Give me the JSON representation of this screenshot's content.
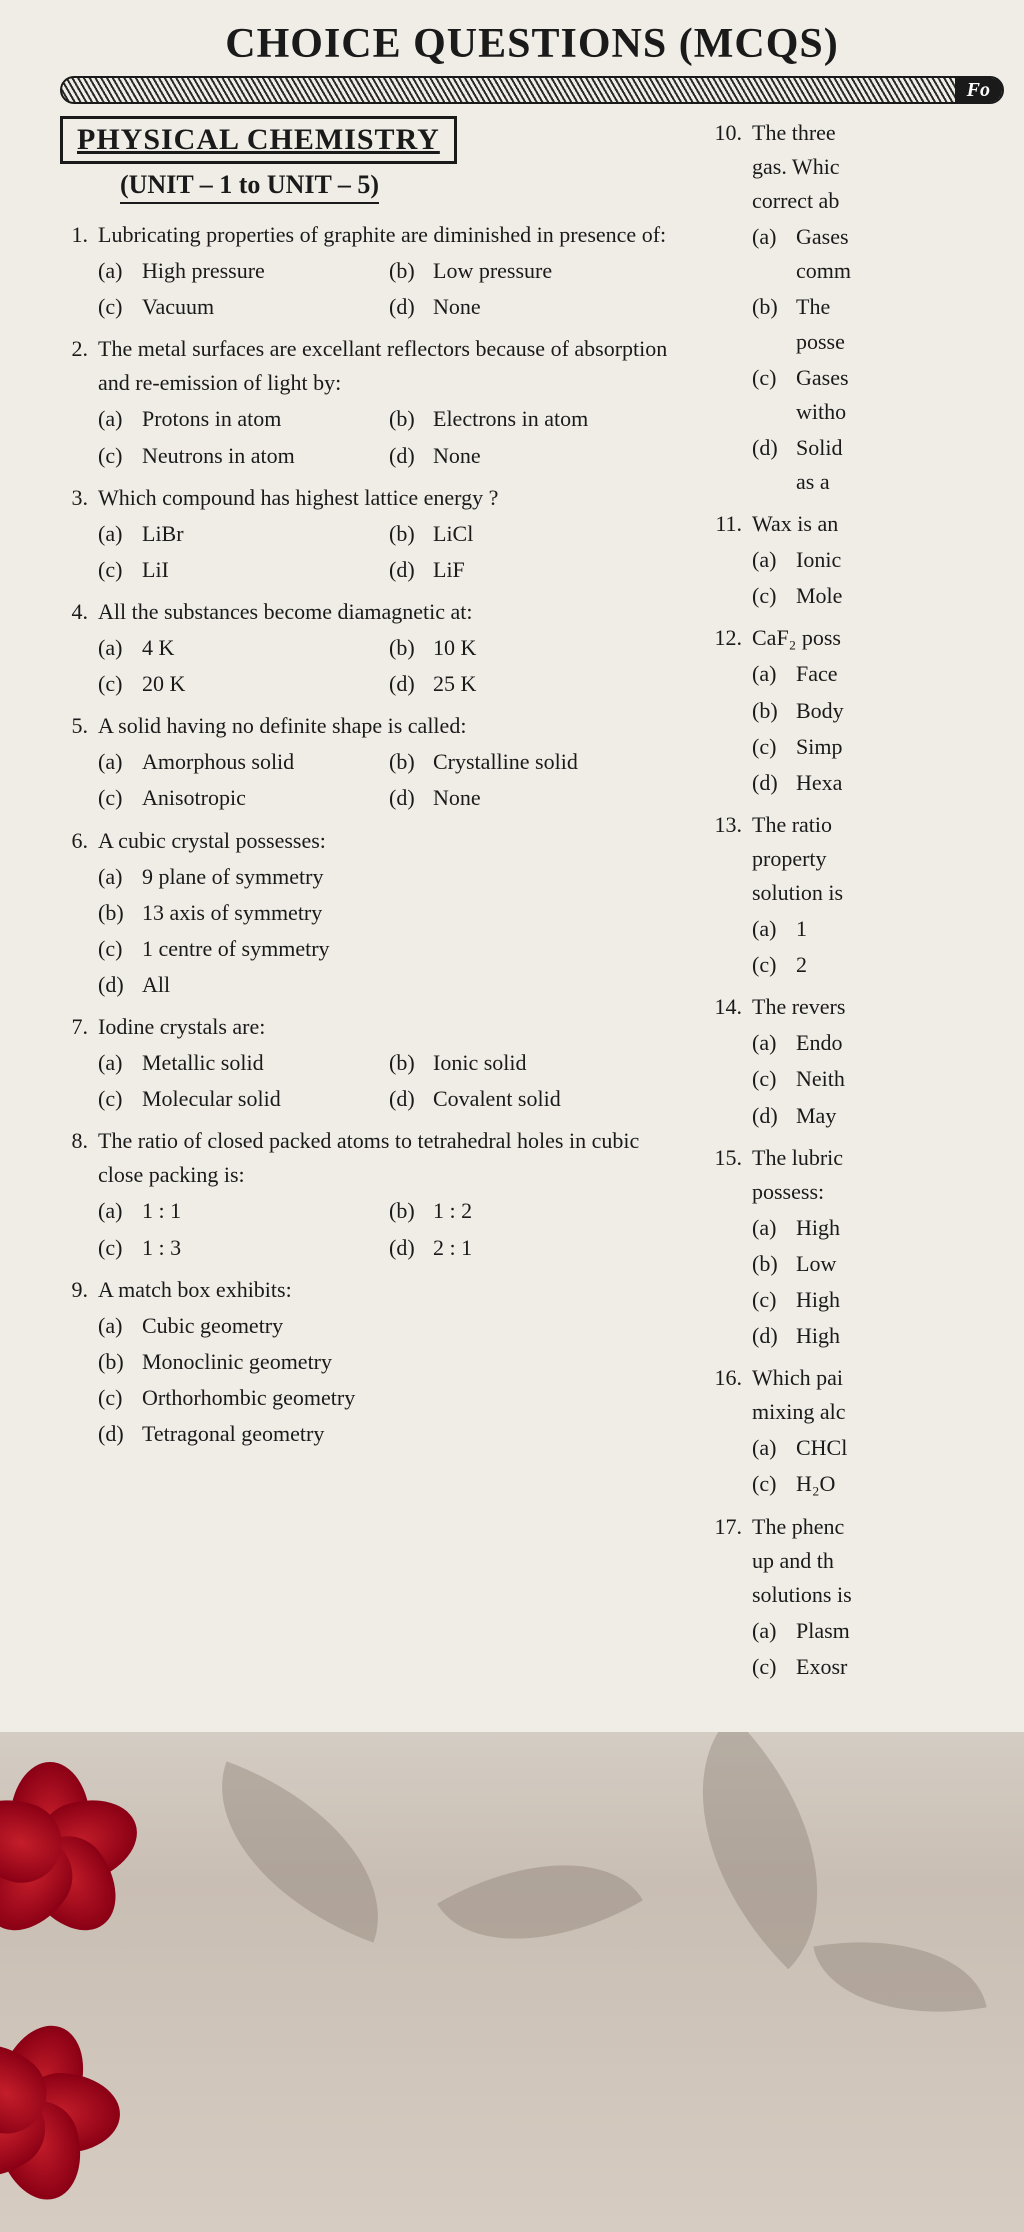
{
  "header": {
    "title": "CHOICE QUESTIONS (MCQS)",
    "bar_label": "Fo"
  },
  "section": {
    "title": "PHYSICAL CHEMISTRY",
    "subtitle": "(UNIT – 1 to UNIT – 5)"
  },
  "left_questions": [
    {
      "num": "1.",
      "text": "Lubricating properties of graphite are diminished in presence of:",
      "options": [
        {
          "l": "(a)",
          "t": "High pressure",
          "w": "half"
        },
        {
          "l": "(b)",
          "t": "Low pressure",
          "w": "half"
        },
        {
          "l": "(c)",
          "t": "Vacuum",
          "w": "half"
        },
        {
          "l": "(d)",
          "t": "None",
          "w": "half"
        }
      ]
    },
    {
      "num": "2.",
      "text": "The metal surfaces are excellant reflectors because of absorption and re-emission of light by:",
      "options": [
        {
          "l": "(a)",
          "t": "Protons in atom",
          "w": "half"
        },
        {
          "l": "(b)",
          "t": "Electrons in atom",
          "w": "half"
        },
        {
          "l": "(c)",
          "t": "Neutrons in atom",
          "w": "half"
        },
        {
          "l": "(d)",
          "t": "None",
          "w": "half"
        }
      ]
    },
    {
      "num": "3.",
      "text": "Which compound has highest lattice energy ?",
      "options": [
        {
          "l": "(a)",
          "t": "LiBr",
          "w": "half"
        },
        {
          "l": "(b)",
          "t": "LiCl",
          "w": "half"
        },
        {
          "l": "(c)",
          "t": "LiI",
          "w": "half"
        },
        {
          "l": "(d)",
          "t": "LiF",
          "w": "half"
        }
      ]
    },
    {
      "num": "4.",
      "text": "All the substances become diamagnetic at:",
      "options": [
        {
          "l": "(a)",
          "t": "4 K",
          "w": "half"
        },
        {
          "l": "(b)",
          "t": "10 K",
          "w": "half"
        },
        {
          "l": "(c)",
          "t": "20 K",
          "w": "half"
        },
        {
          "l": "(d)",
          "t": "25 K",
          "w": "half"
        }
      ]
    },
    {
      "num": "5.",
      "text": "A solid having no definite shape is called:",
      "options": [
        {
          "l": "(a)",
          "t": "Amorphous solid",
          "w": "half"
        },
        {
          "l": "(b)",
          "t": "Crystalline solid",
          "w": "half"
        },
        {
          "l": "(c)",
          "t": "Anisotropic",
          "w": "half"
        },
        {
          "l": "(d)",
          "t": "None",
          "w": "half"
        }
      ]
    },
    {
      "num": "6.",
      "text": "A cubic crystal possesses:",
      "options": [
        {
          "l": "(a)",
          "t": "9 plane of symmetry",
          "w": "full"
        },
        {
          "l": "(b)",
          "t": "13 axis of symmetry",
          "w": "full"
        },
        {
          "l": "(c)",
          "t": "1 centre of symmetry",
          "w": "full"
        },
        {
          "l": "(d)",
          "t": "All",
          "w": "full"
        }
      ]
    },
    {
      "num": "7.",
      "text": "Iodine crystals are:",
      "options": [
        {
          "l": "(a)",
          "t": "Metallic solid",
          "w": "half"
        },
        {
          "l": "(b)",
          "t": "Ionic solid",
          "w": "half"
        },
        {
          "l": "(c)",
          "t": "Molecular solid",
          "w": "half"
        },
        {
          "l": "(d)",
          "t": "Covalent solid",
          "w": "half"
        }
      ]
    },
    {
      "num": "8.",
      "text": "The ratio of closed packed atoms to tetrahedral holes in cubic close packing is:",
      "options": [
        {
          "l": "(a)",
          "t": "1 : 1",
          "w": "half"
        },
        {
          "l": "(b)",
          "t": "1 : 2",
          "w": "half"
        },
        {
          "l": "(c)",
          "t": "1 : 3",
          "w": "half"
        },
        {
          "l": "(d)",
          "t": "2 : 1",
          "w": "half"
        }
      ]
    },
    {
      "num": "9.",
      "text": "A match box exhibits:",
      "options": [
        {
          "l": "(a)",
          "t": "Cubic geometry",
          "w": "full"
        },
        {
          "l": "(b)",
          "t": "Monoclinic geometry",
          "w": "full"
        },
        {
          "l": "(c)",
          "t": "Orthorhombic geometry",
          "w": "full"
        },
        {
          "l": "(d)",
          "t": "Tetragonal geometry",
          "w": "full"
        }
      ]
    }
  ],
  "right_questions": [
    {
      "num": "10.",
      "text": "The three\ngas. Whic\ncorrect ab",
      "options": [
        {
          "l": "(a)",
          "t": "Gases\ncomm",
          "w": "full"
        },
        {
          "l": "(b)",
          "t": "The\nposse",
          "w": "full"
        },
        {
          "l": "(c)",
          "t": "Gases\nwitho",
          "w": "full"
        },
        {
          "l": "(d)",
          "t": "Solid\nas a",
          "w": "full"
        }
      ]
    },
    {
      "num": "11.",
      "text": "Wax is an",
      "options": [
        {
          "l": "(a)",
          "t": "Ionic",
          "w": "full"
        },
        {
          "l": "(c)",
          "t": "Mole",
          "w": "full"
        }
      ]
    },
    {
      "num": "12.",
      "text": "CaF₂ poss",
      "options": [
        {
          "l": "(a)",
          "t": "Face",
          "w": "full"
        },
        {
          "l": "(b)",
          "t": "Body",
          "w": "full"
        },
        {
          "l": "(c)",
          "t": "Simp",
          "w": "full"
        },
        {
          "l": "(d)",
          "t": "Hexa",
          "w": "full"
        }
      ]
    },
    {
      "num": "13.",
      "text": "The ratio\nproperty\nsolution is",
      "options": [
        {
          "l": "(a)",
          "t": "1",
          "w": "full"
        },
        {
          "l": "(c)",
          "t": "2",
          "w": "full"
        }
      ]
    },
    {
      "num": "14.",
      "text": "The revers",
      "options": [
        {
          "l": "(a)",
          "t": "Endo",
          "w": "full"
        },
        {
          "l": "(c)",
          "t": "Neith",
          "w": "full"
        },
        {
          "l": "(d)",
          "t": "May",
          "w": "full"
        }
      ]
    },
    {
      "num": "15.",
      "text": "The lubric\npossess:",
      "options": [
        {
          "l": "(a)",
          "t": "High",
          "w": "full"
        },
        {
          "l": "(b)",
          "t": "Low",
          "w": "full"
        },
        {
          "l": "(c)",
          "t": "High",
          "w": "full"
        },
        {
          "l": "(d)",
          "t": "High",
          "w": "full"
        }
      ]
    },
    {
      "num": "16.",
      "text": "Which pai\nmixing alc",
      "options": [
        {
          "l": "(a)",
          "t": "CHCl",
          "w": "full"
        },
        {
          "l": "(c)",
          "t": "H₂O",
          "w": "full"
        }
      ]
    },
    {
      "num": "17.",
      "text": "The phenc\nup and th\nsolutions is",
      "options": [
        {
          "l": "(a)",
          "t": "Plasm",
          "w": "full"
        },
        {
          "l": "(c)",
          "t": "Exosr",
          "w": "full"
        }
      ]
    }
  ],
  "styling": {
    "page_bg": "#f0ede6",
    "text_color": "#1a1a1a",
    "title_fontsize": 42,
    "body_fontsize": 22,
    "section_fontsize": 30,
    "unit_fontsize": 26,
    "flower_color_outer": "#8b0015",
    "flower_color_inner": "#c41e2a",
    "decor_bg": "#d4cdc4"
  }
}
